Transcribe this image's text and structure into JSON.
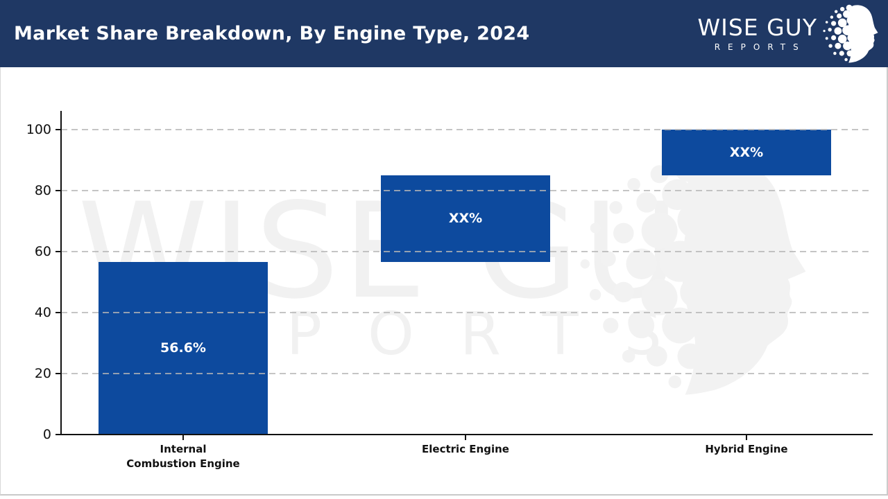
{
  "header": {
    "title": "Market Share Breakdown, By Engine Type, 2024",
    "logo": {
      "wordmark": "WISE GUY",
      "sub": "REPORTS"
    }
  },
  "watermark": {
    "line1": "WISE GUY",
    "line2": "REPORTS"
  },
  "chart_data": {
    "type": "bar",
    "subtype": "waterfall-segments",
    "title": "Market Share Breakdown, By Engine Type, 2024",
    "categories": [
      "Internal Combustion Engine",
      "Electric Engine",
      "Hybrid Engine"
    ],
    "category_label_lines": [
      [
        "Internal",
        "Combustion Engine"
      ],
      [
        "Electric Engine"
      ],
      [
        "Hybrid Engine"
      ]
    ],
    "bars": [
      {
        "category": "Internal Combustion Engine",
        "base": 0,
        "top": 56.6,
        "label": "56.6%"
      },
      {
        "category": "Electric Engine",
        "base": 56.6,
        "top": 85,
        "label": "XX%"
      },
      {
        "category": "Hybrid Engine",
        "base": 85,
        "top": 100,
        "label": "XX%"
      }
    ],
    "yticks": [
      0,
      20,
      40,
      60,
      80,
      100
    ],
    "ylim": [
      0,
      100
    ],
    "xlabel": "",
    "ylabel": "",
    "legend": "none",
    "grid": "horizontal-dashed",
    "bar_color": "#0d4a9e",
    "bar_label_color": "#ffffff",
    "grid_color": "#c6c6c6",
    "axis_color": "#111111",
    "header_color": "#1f3864",
    "watermark_color": "#f1f1f1"
  }
}
